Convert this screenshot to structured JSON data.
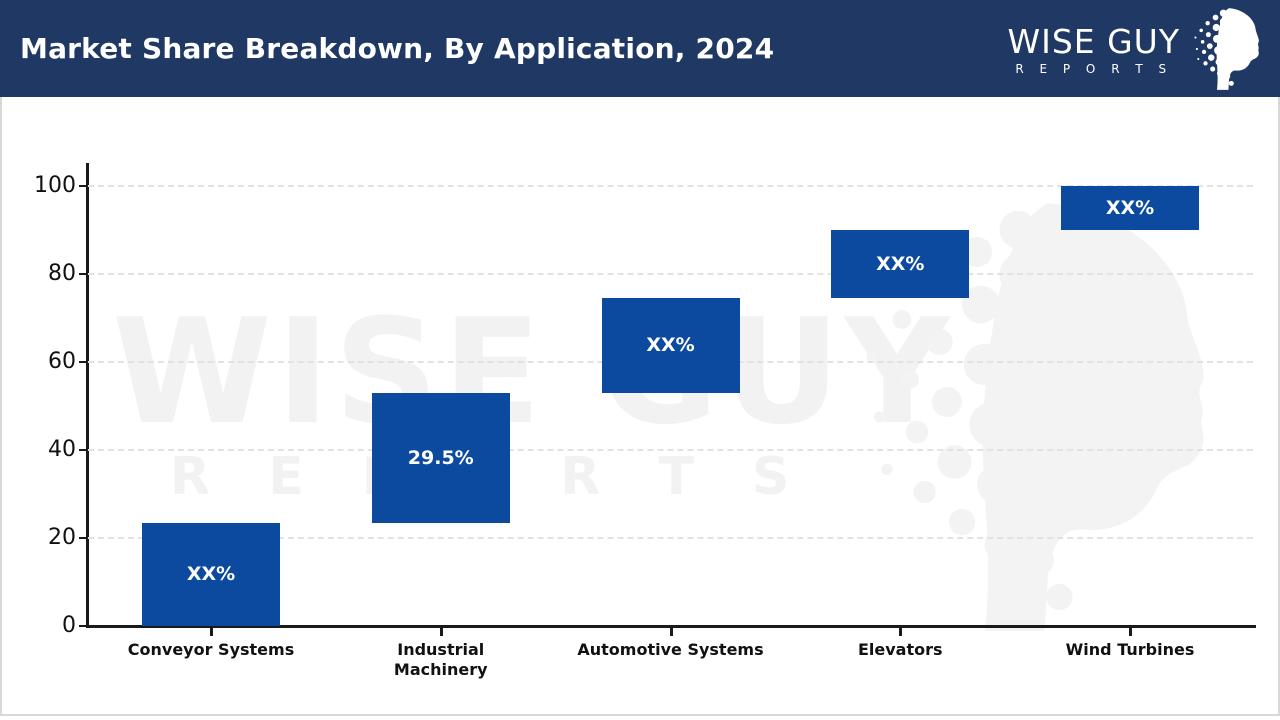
{
  "header": {
    "title": "Market Share Breakdown, By Application, 2024",
    "logo": {
      "name": "WISE GUY",
      "tagline": "R E P O R T S"
    }
  },
  "watermark": {
    "line1": "WISE GUY",
    "line2": "R E P O R T S"
  },
  "chart_data": {
    "type": "bar",
    "subtype": "waterfall",
    "title": "Market Share Breakdown, By Application, 2024",
    "categories": [
      "Conveyor Systems",
      "Industrial Machinery",
      "Automotive Systems",
      "Elevators",
      "Wind Turbines"
    ],
    "tick_labels": [
      "Conveyor Systems",
      "Industrial\nMachinery",
      "Automotive Systems",
      "Elevators",
      "Wind Turbines"
    ],
    "bars": [
      {
        "category": "Conveyor Systems",
        "start": 0,
        "end": 23.5,
        "label": "XX%"
      },
      {
        "category": "Industrial Machinery",
        "start": 23.5,
        "end": 53,
        "label": "29.5%"
      },
      {
        "category": "Automotive Systems",
        "start": 53,
        "end": 74.5,
        "label": "XX%"
      },
      {
        "category": "Elevators",
        "start": 74.5,
        "end": 90,
        "label": "XX%"
      },
      {
        "category": "Wind Turbines",
        "start": 90,
        "end": 100,
        "label": "XX%"
      }
    ],
    "ylim": [
      0,
      100
    ],
    "yticks": [
      0,
      20,
      40,
      60,
      80,
      100
    ],
    "xlabel": "",
    "ylabel": "",
    "grid": {
      "axis": "y",
      "style": "dashed"
    },
    "legend": false,
    "colors": {
      "bar": "#0b4a9e",
      "bar_label": "#ffffff",
      "axis": "#1a1a1a",
      "grid": "#e2e2e2",
      "tick_text": "#111111"
    }
  },
  "colors": {
    "header_bg": "#1f3864",
    "page_bg": "#ffffff",
    "frame_border": "#d8d8d8",
    "watermark": "#f2f2f2"
  }
}
